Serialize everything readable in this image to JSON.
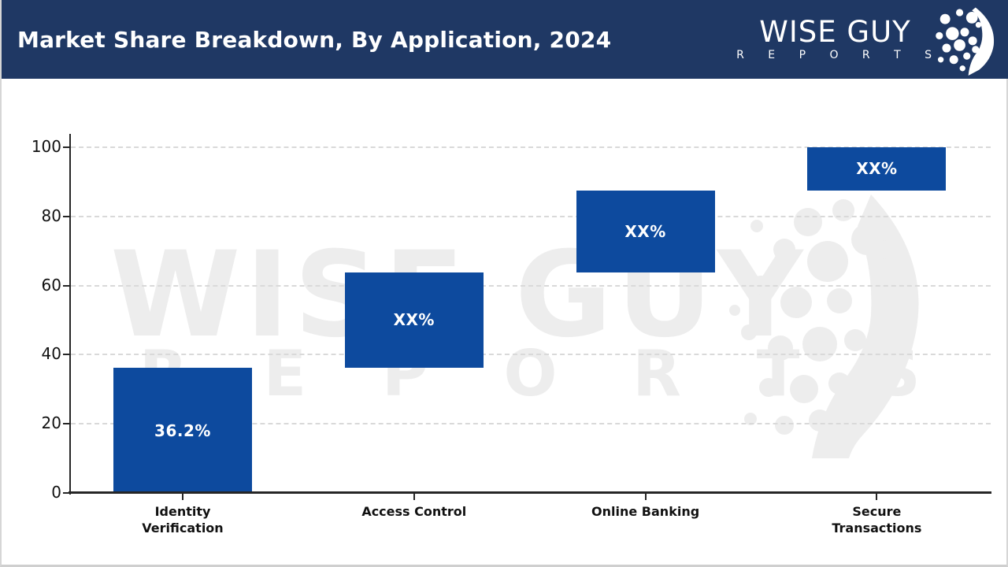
{
  "header": {
    "title": "Market Share Breakdown, By Application, 2024",
    "bg_color": "#1f3864",
    "logo": {
      "line1": "WISE GUY",
      "line2": "R E P O R T S"
    }
  },
  "watermark": {
    "line1": "WISE GUY",
    "line2": "R E P O R T S"
  },
  "chart_data": {
    "type": "bar",
    "subtype": "waterfall",
    "title": "Market Share Breakdown, By Application, 2024",
    "categories": [
      "Identity\nVerification",
      "Access Control",
      "Online Banking",
      "Secure\nTransactions"
    ],
    "segments": [
      {
        "category": "Identity Verification",
        "start": 0,
        "end": 36.2,
        "label": "36.2%"
      },
      {
        "category": "Access Control",
        "start": 36.2,
        "end": 63.8,
        "label": "XX%"
      },
      {
        "category": "Online Banking",
        "start": 63.8,
        "end": 87.5,
        "label": "XX%"
      },
      {
        "category": "Secure Transactions",
        "start": 87.5,
        "end": 100,
        "label": "XX%"
      }
    ],
    "yticks": [
      0,
      20,
      40,
      60,
      80,
      100
    ],
    "ylim": [
      0,
      104
    ],
    "xlabel": "",
    "ylabel": "",
    "legend": "none",
    "grid": "dashed-horizontal",
    "bar_color": "#0d4a9e",
    "bar_label_color": "#ffffff",
    "gridline_color": "#d9d9d9",
    "axis_color": "#262626"
  }
}
